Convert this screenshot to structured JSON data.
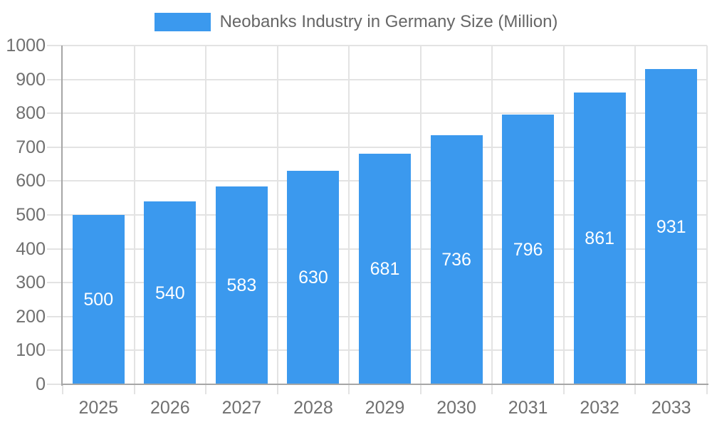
{
  "legend": {
    "label": "Neobanks Industry in Germany Size (Million)"
  },
  "chart_data": {
    "type": "bar",
    "title": "Neobanks Industry in Germany Size (Million)",
    "xlabel": "",
    "ylabel": "",
    "categories": [
      "2025",
      "2026",
      "2027",
      "2028",
      "2029",
      "2030",
      "2031",
      "2032",
      "2033"
    ],
    "values": [
      500,
      540,
      583,
      630,
      681,
      736,
      796,
      861,
      931
    ],
    "ylim": [
      0,
      1000
    ],
    "ytick_step": 100,
    "yticks": [
      0,
      100,
      200,
      300,
      400,
      500,
      600,
      700,
      800,
      900,
      1000
    ],
    "grid": true,
    "legend_position": "top",
    "value_labels": "inside-center",
    "colors": {
      "bar": "#3b99ee",
      "bar_label": "#ffffff",
      "axis_line": "#a6a6a6",
      "grid_line": "#e3e3e3",
      "tick_text": "#707070",
      "title_text": "#666666",
      "background": "#ffffff"
    }
  }
}
